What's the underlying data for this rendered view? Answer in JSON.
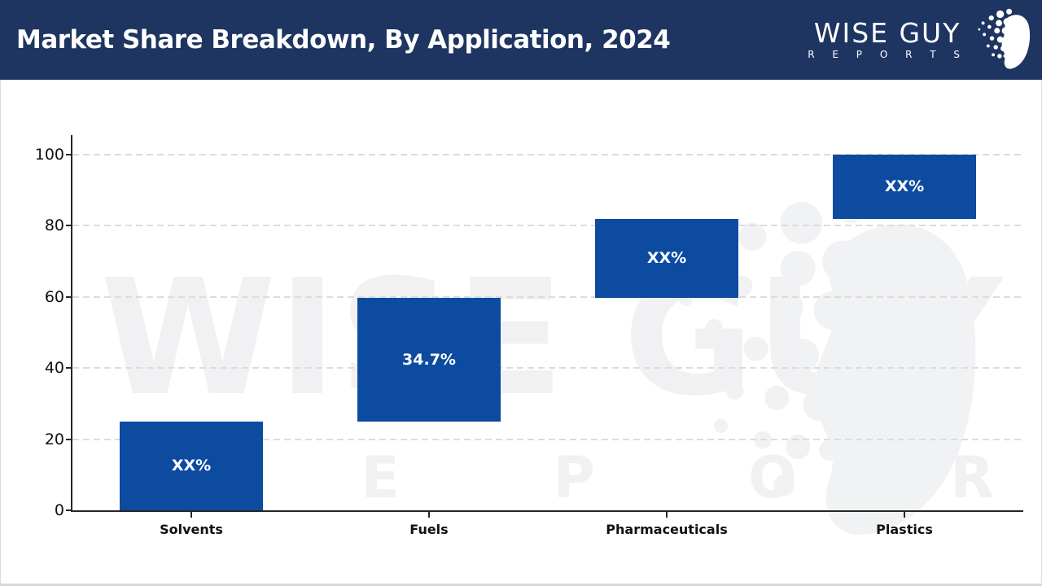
{
  "header": {
    "title": "Market Share Breakdown, By Application, 2024",
    "logo_line1": "WISE GUY",
    "logo_line2": "R E P O R T S"
  },
  "watermark": {
    "line1": "WISE GUY",
    "line2": "R E P O R T S"
  },
  "chart_data": {
    "type": "bar",
    "subtype": "waterfall",
    "title": "Market Share Breakdown, By Application, 2024",
    "categories": [
      "Solvents",
      "Fuels",
      "Pharmaceuticals",
      "Plastics"
    ],
    "bars": [
      {
        "category": "Solvents",
        "start": 0,
        "end": 25,
        "label": "XX%"
      },
      {
        "category": "Fuels",
        "start": 25,
        "end": 59.7,
        "label": "34.7%"
      },
      {
        "category": "Pharmaceuticals",
        "start": 59.7,
        "end": 82,
        "label": "XX%"
      },
      {
        "category": "Plastics",
        "start": 82,
        "end": 100,
        "label": "XX%"
      }
    ],
    "y_ticks": [
      0,
      20,
      40,
      60,
      80,
      100
    ],
    "ylim": [
      0,
      105
    ],
    "xlabel": "",
    "ylabel": "",
    "grid": "horizontal-dashed",
    "legend": "none"
  },
  "colors": {
    "header_bg": "#1e3461",
    "bar": "#0c4ba0",
    "bar_label": "#ffffff",
    "gridline": "#dcdcdc",
    "axis": "#262626",
    "watermark": "#f1f1f3",
    "page_bg": "#ffffff"
  }
}
